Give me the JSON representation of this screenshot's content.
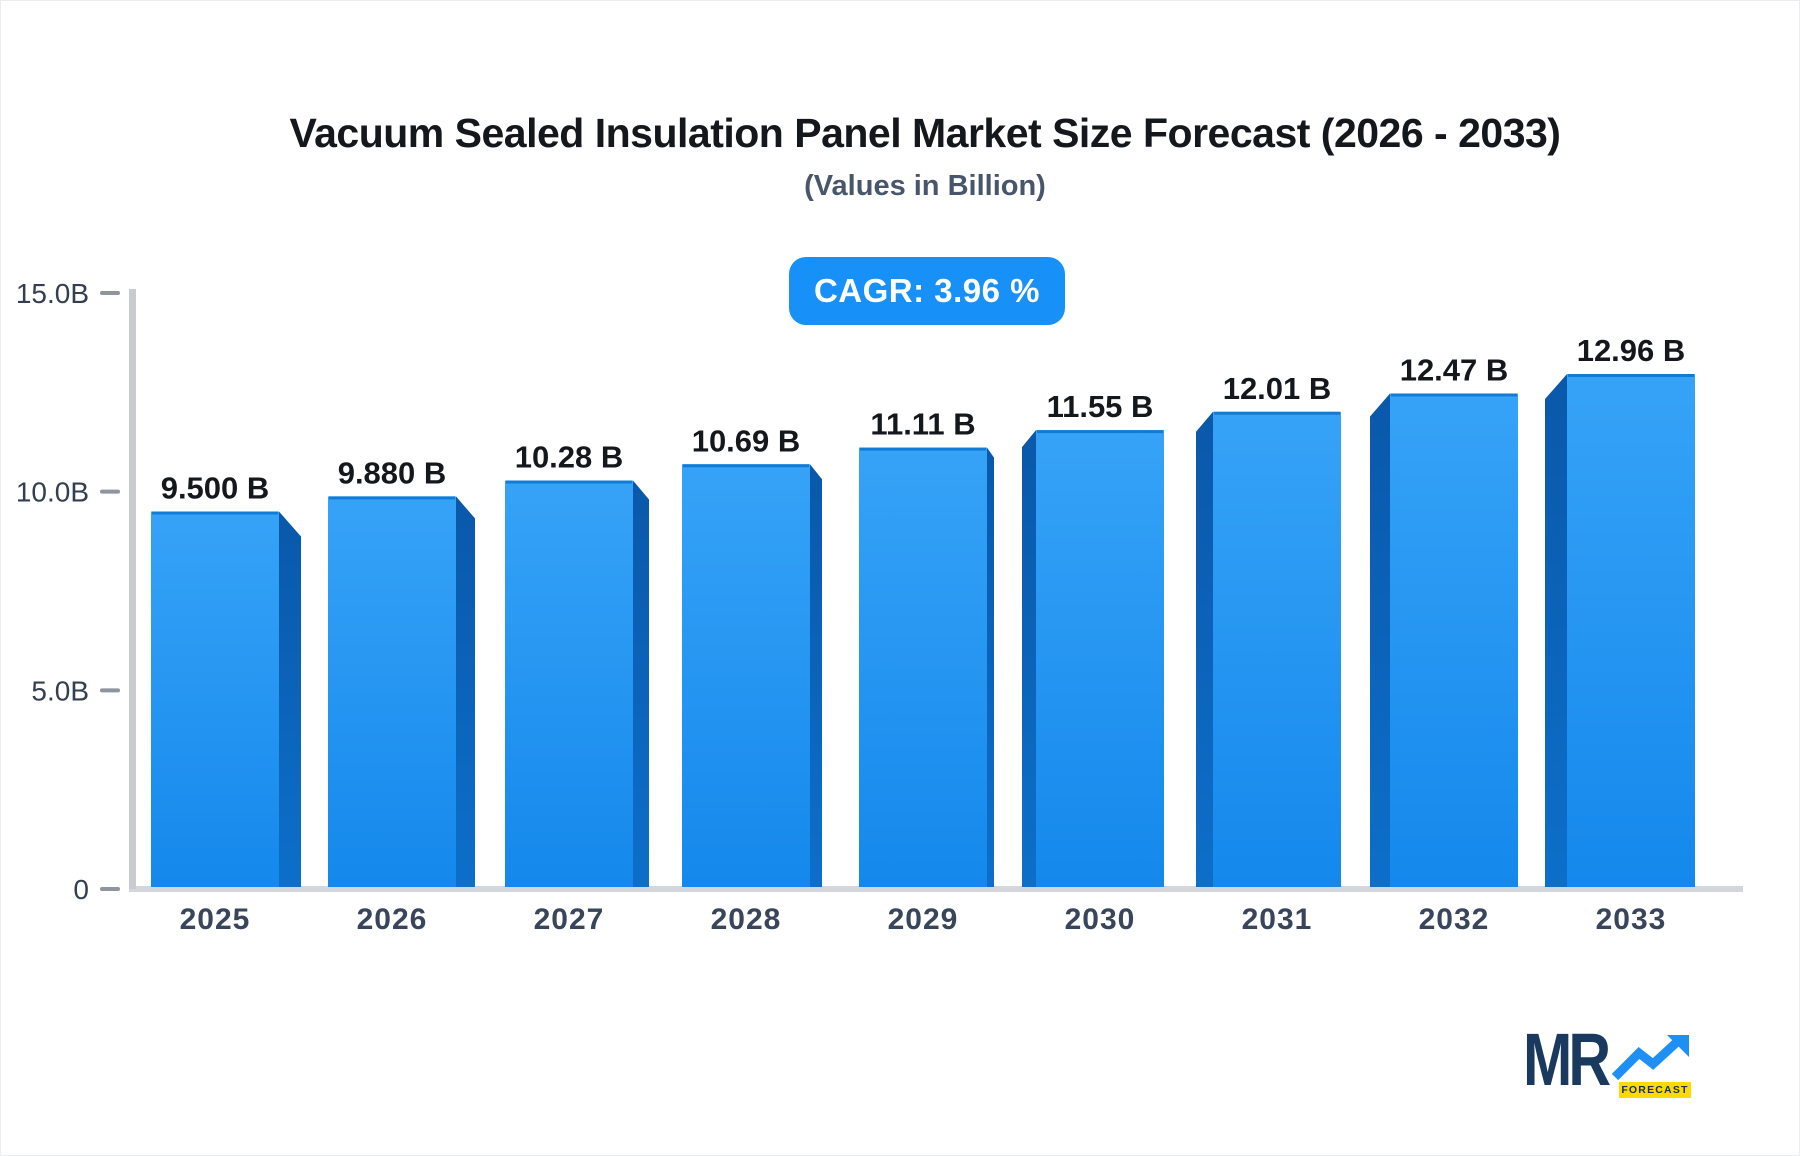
{
  "header": {
    "title": "Vacuum Sealed Insulation Panel Market Size Forecast (2026 - 2033)",
    "subtitle": "(Values in Billion)"
  },
  "cagr_badge": {
    "label": "CAGR: 3.96 %"
  },
  "chart_data": {
    "type": "bar",
    "title": "Vacuum Sealed Insulation Panel Market Size Forecast (2026 - 2033)",
    "subtitle": "(Values in Billion)",
    "categories": [
      "2025",
      "2026",
      "2027",
      "2028",
      "2029",
      "2030",
      "2031",
      "2032",
      "2033"
    ],
    "values": [
      9.5,
      9.88,
      10.28,
      10.69,
      11.11,
      11.55,
      12.01,
      12.47,
      12.96
    ],
    "bar_labels": [
      "9.500 B",
      "9.880 B",
      "10.28 B",
      "10.69 B",
      "11.11 B",
      "11.55 B",
      "12.01 B",
      "12.47 B",
      "12.96 B"
    ],
    "unit": "Billion",
    "cagr": "3.96 %",
    "ylim": [
      0,
      15
    ],
    "yticks": [
      {
        "value": 0,
        "label": "0"
      },
      {
        "value": 5,
        "label": "5.0B"
      },
      {
        "value": 10,
        "label": "10.0B"
      },
      {
        "value": 15,
        "label": "15.0B"
      }
    ],
    "grid": false,
    "legend": false,
    "colors": {
      "bar_face_top": "#36a3f7",
      "bar_face_bottom": "#1488ec",
      "bar_top_edge": "#117bd6",
      "bar_side_top": "#0a58aa",
      "bar_side_bottom": "#0c6fc9",
      "axis_line": "#c8ccd2",
      "baseline": "#d3d6da",
      "tick_dash": "#8e959d",
      "tick_label": "#333f50",
      "year_label": "#39455a",
      "value_label": "#14181d",
      "badge_bg": "#1791f7"
    }
  },
  "logo": {
    "text": "MR",
    "tag": "FORECAST",
    "navy": "#19395f",
    "blue": "#1f90f3",
    "yellow": "#ffda00"
  }
}
